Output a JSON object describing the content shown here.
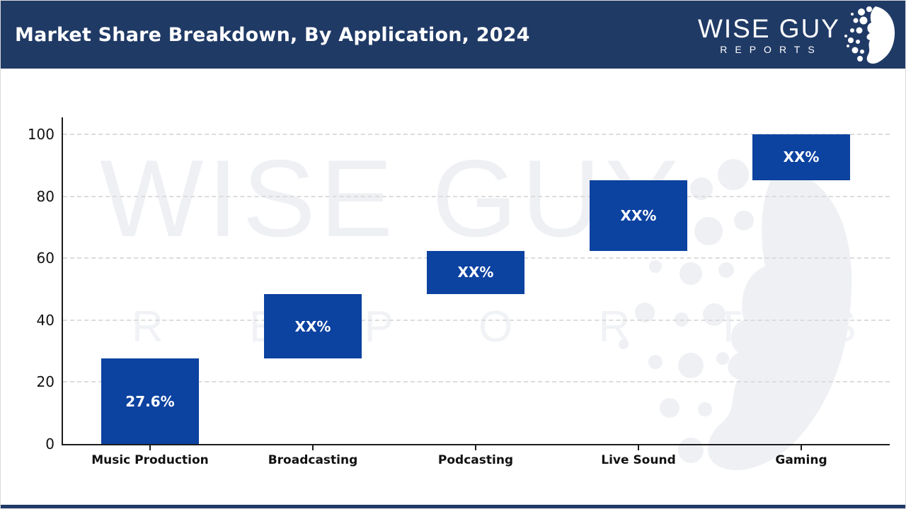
{
  "header": {
    "title": "Market Share Breakdown, By Application, 2024",
    "logo": {
      "line1": "WISE GUY",
      "line2": "REPORTS"
    }
  },
  "watermark": {
    "line1": "WISE GUY",
    "line2": "R E P O R T S"
  },
  "chart_data": {
    "type": "bar",
    "subtype": "floating-waterfall",
    "title": "Market Share Breakdown, By Application, 2024",
    "categories": [
      "Music Production",
      "Broadcasting",
      "Podcasting",
      "Live Sound",
      "Gaming"
    ],
    "segments": [
      {
        "category": "Music Production",
        "start": 0,
        "end": 27.6,
        "label": "27.6%"
      },
      {
        "category": "Broadcasting",
        "start": 27.6,
        "end": 48.4,
        "label": "XX%"
      },
      {
        "category": "Podcasting",
        "start": 48.4,
        "end": 62.4,
        "label": "XX%"
      },
      {
        "category": "Live Sound",
        "start": 62.4,
        "end": 85.2,
        "label": "XX%"
      },
      {
        "category": "Gaming",
        "start": 85.2,
        "end": 100,
        "label": "XX%"
      }
    ],
    "xlabel": "",
    "ylabel": "",
    "yticks": [
      0,
      20,
      40,
      60,
      80,
      100
    ],
    "ylim": [
      0,
      105
    ],
    "grid": true,
    "legend": false,
    "bar_color": "#0C42A0"
  },
  "colors": {
    "header_bg": "#203A66",
    "footer_bg": "#203A66",
    "bar": "#0C42A0",
    "grid": "#DCDCDC",
    "axis": "#1C1C1C",
    "text": "#111111",
    "watermark": "#EEF0F3"
  }
}
